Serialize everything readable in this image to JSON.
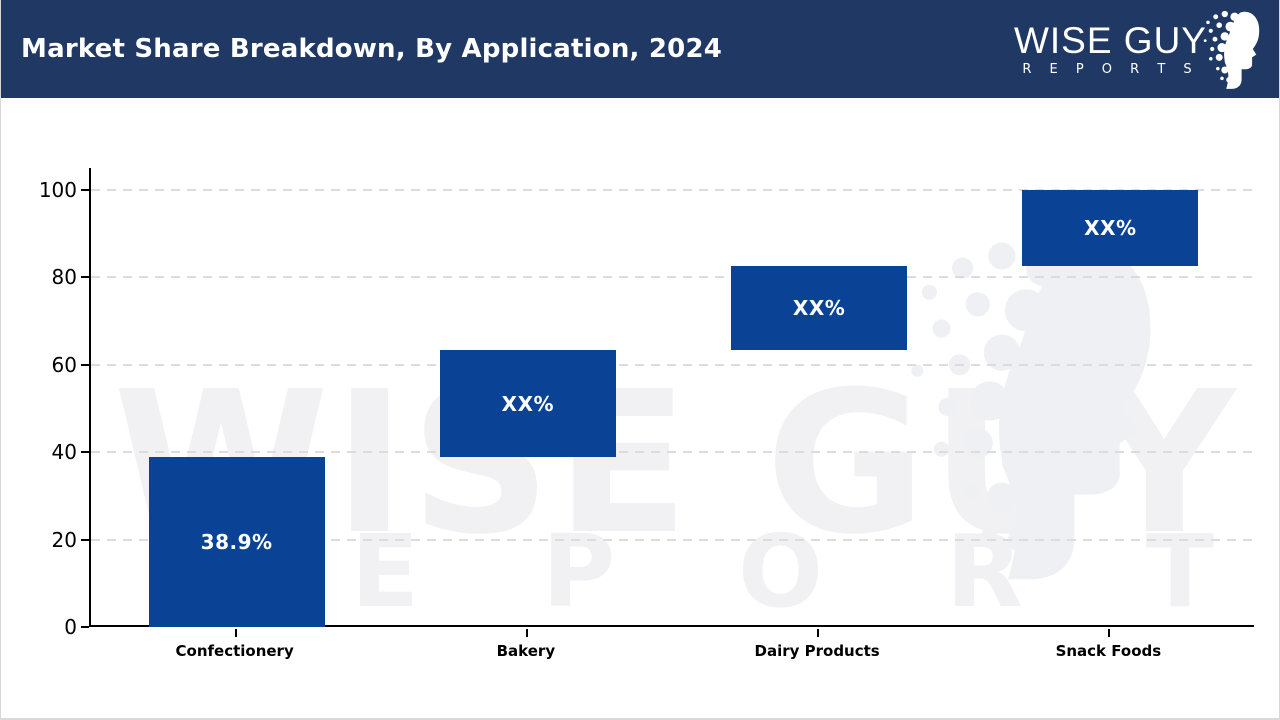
{
  "header": {
    "title": "Market Share Breakdown, By Application, 2024",
    "background": "#1f3864",
    "logo": {
      "wordmark": "WISE GUY",
      "subtext": "R E P O R T S"
    }
  },
  "watermark": {
    "line1": "WISE GUY",
    "line2": "R E P O R T S"
  },
  "chart_data": {
    "type": "bar",
    "variant": "waterfall",
    "title": "Market Share Breakdown, By Application, 2024",
    "categories": [
      "Confectionery",
      "Bakery",
      "Dairy Products",
      "Snack Foods"
    ],
    "bars": [
      {
        "category": "Confectionery",
        "start": 0,
        "end": 38.9,
        "label": "38.9%"
      },
      {
        "category": "Bakery",
        "start": 38.9,
        "end": 63.3,
        "label": "XX%"
      },
      {
        "category": "Dairy Products",
        "start": 63.3,
        "end": 82.6,
        "label": "XX%"
      },
      {
        "category": "Snack Foods",
        "start": 82.6,
        "end": 100,
        "label": "XX%"
      }
    ],
    "xlabel": "",
    "ylabel": "",
    "ylim": [
      0,
      105
    ],
    "yticks": [
      0,
      20,
      40,
      60,
      80,
      100
    ],
    "grid": "horizontal-dashed",
    "legend": "none",
    "bar_color": "#0a4296",
    "bar_label_color": "#ffffff",
    "axis_color": "#000000",
    "grid_color": "#dcdcdc",
    "tick_label_color": "#000000"
  }
}
